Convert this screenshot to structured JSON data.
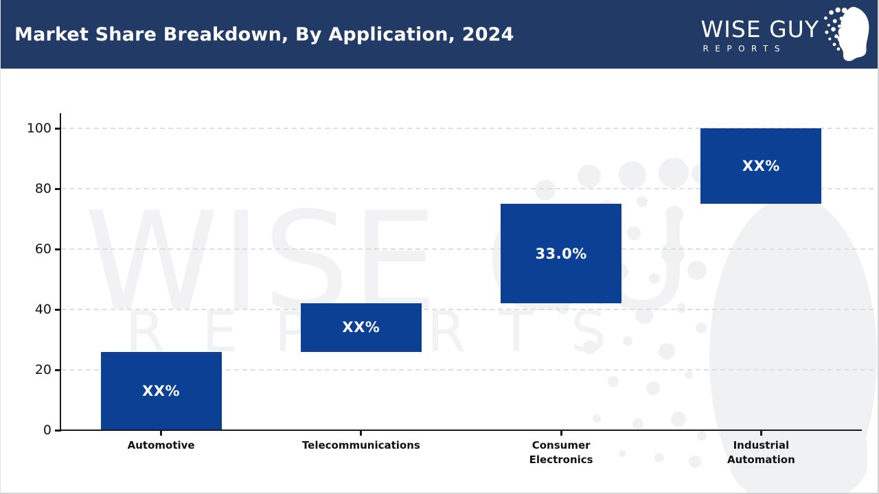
{
  "header": {
    "title": "Market Share Breakdown, By Application, 2024",
    "background_color": "#213a66",
    "text_color": "#ffffff",
    "logo": {
      "primary_text": "WISE GUY",
      "secondary_text": "REPORTS",
      "icon": "dotted-face-profile"
    }
  },
  "watermark": {
    "primary_text": "WISE GU",
    "secondary_text": "REPORTS"
  },
  "chart_data": {
    "type": "bar",
    "subtype": "floating-segment-waterfall",
    "title": "Market Share Breakdown, By Application, 2024",
    "categories": [
      "Automotive",
      "Telecommunications",
      "Consumer Electronics",
      "Industrial Automation"
    ],
    "category_label_lines": [
      [
        "Automotive"
      ],
      [
        "Telecommunications"
      ],
      [
        "Consumer",
        "Electronics"
      ],
      [
        "Industrial",
        "Automation"
      ]
    ],
    "series": [
      {
        "name": "Market share (%)",
        "segments": [
          {
            "category": "Automotive",
            "start": 0,
            "end": 26,
            "label": "XX%"
          },
          {
            "category": "Telecommunications",
            "start": 26,
            "end": 42,
            "label": "XX%"
          },
          {
            "category": "Consumer Electronics",
            "start": 42,
            "end": 75,
            "label": "33.0%"
          },
          {
            "category": "Industrial Automation",
            "start": 75,
            "end": 100,
            "label": "XX%"
          }
        ]
      }
    ],
    "xlabel": "",
    "ylabel": "",
    "ylim": [
      0,
      100
    ],
    "yticks": [
      0,
      20,
      40,
      60,
      80,
      100
    ],
    "grid": {
      "horizontal": true,
      "style": "dashed"
    },
    "legend": null,
    "colors": {
      "bar": "#0b4094",
      "bar_label": "#ffffff",
      "axis": "#1a1a1a",
      "gridline": "#dedede",
      "tick_label": "#111111"
    }
  }
}
